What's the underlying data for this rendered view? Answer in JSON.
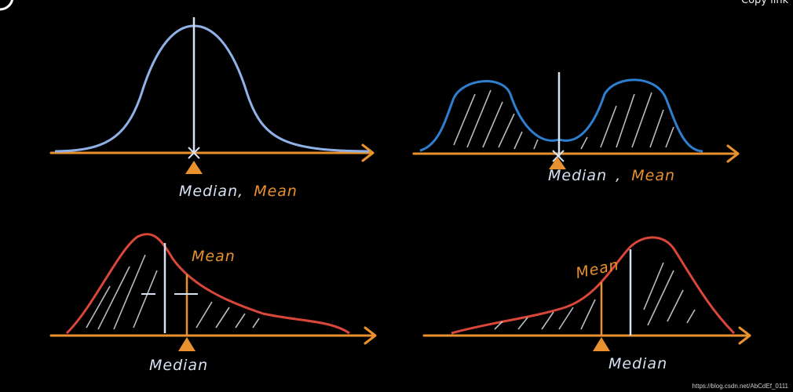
{
  "header": {
    "copy_link": "Copy link"
  },
  "panels": [
    {
      "median": "Median",
      "separator": ",",
      "mean": "Mean"
    },
    {
      "median": "Median",
      "separator": ",",
      "mean": "Mean"
    },
    {
      "median": "Median",
      "mean": "Mean"
    },
    {
      "median": "Median",
      "mean": "Mean"
    }
  ],
  "footer": {
    "watermark": "https://blog.csdn.net/AbCdEf_0111"
  }
}
